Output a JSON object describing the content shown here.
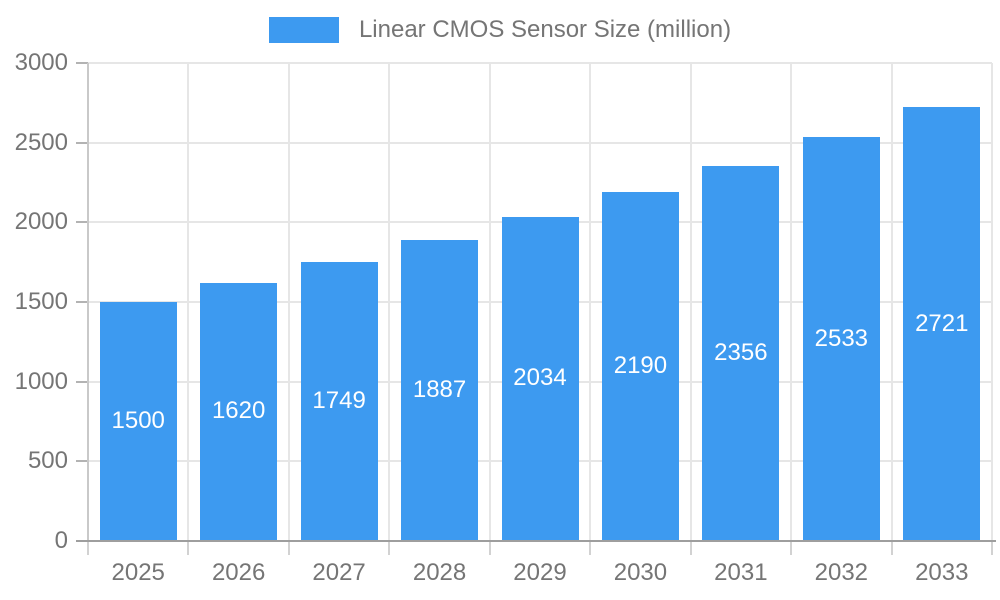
{
  "chart_data": {
    "type": "bar",
    "title": "",
    "categories": [
      "2025",
      "2026",
      "2027",
      "2028",
      "2029",
      "2030",
      "2031",
      "2032",
      "2033"
    ],
    "values": [
      1500,
      1620,
      1749,
      1887,
      2034,
      2190,
      2356,
      2533,
      2721
    ],
    "series": [
      {
        "name": "Linear CMOS Sensor Size (million)",
        "values": [
          1500,
          1620,
          1749,
          1887,
          2034,
          2190,
          2356,
          2533,
          2721
        ]
      }
    ],
    "legend": [
      "Linear CMOS Sensor Size (million)"
    ],
    "legend_position": "top-center",
    "xlabel": "",
    "ylabel": "",
    "ylim": [
      0,
      3000
    ],
    "ytick_step": 500,
    "ytick_labels": [
      "0",
      "500",
      "1000",
      "1500",
      "2000",
      "2500",
      "3000"
    ],
    "grid": true,
    "value_labels": "inside-center"
  },
  "colors": {
    "bar": "#3d9af0",
    "grid": "#e6e6e6",
    "axis_line": "#9e9e9e",
    "axis_label": "#757575",
    "value_label": "#ffffff",
    "background": "#ffffff"
  }
}
